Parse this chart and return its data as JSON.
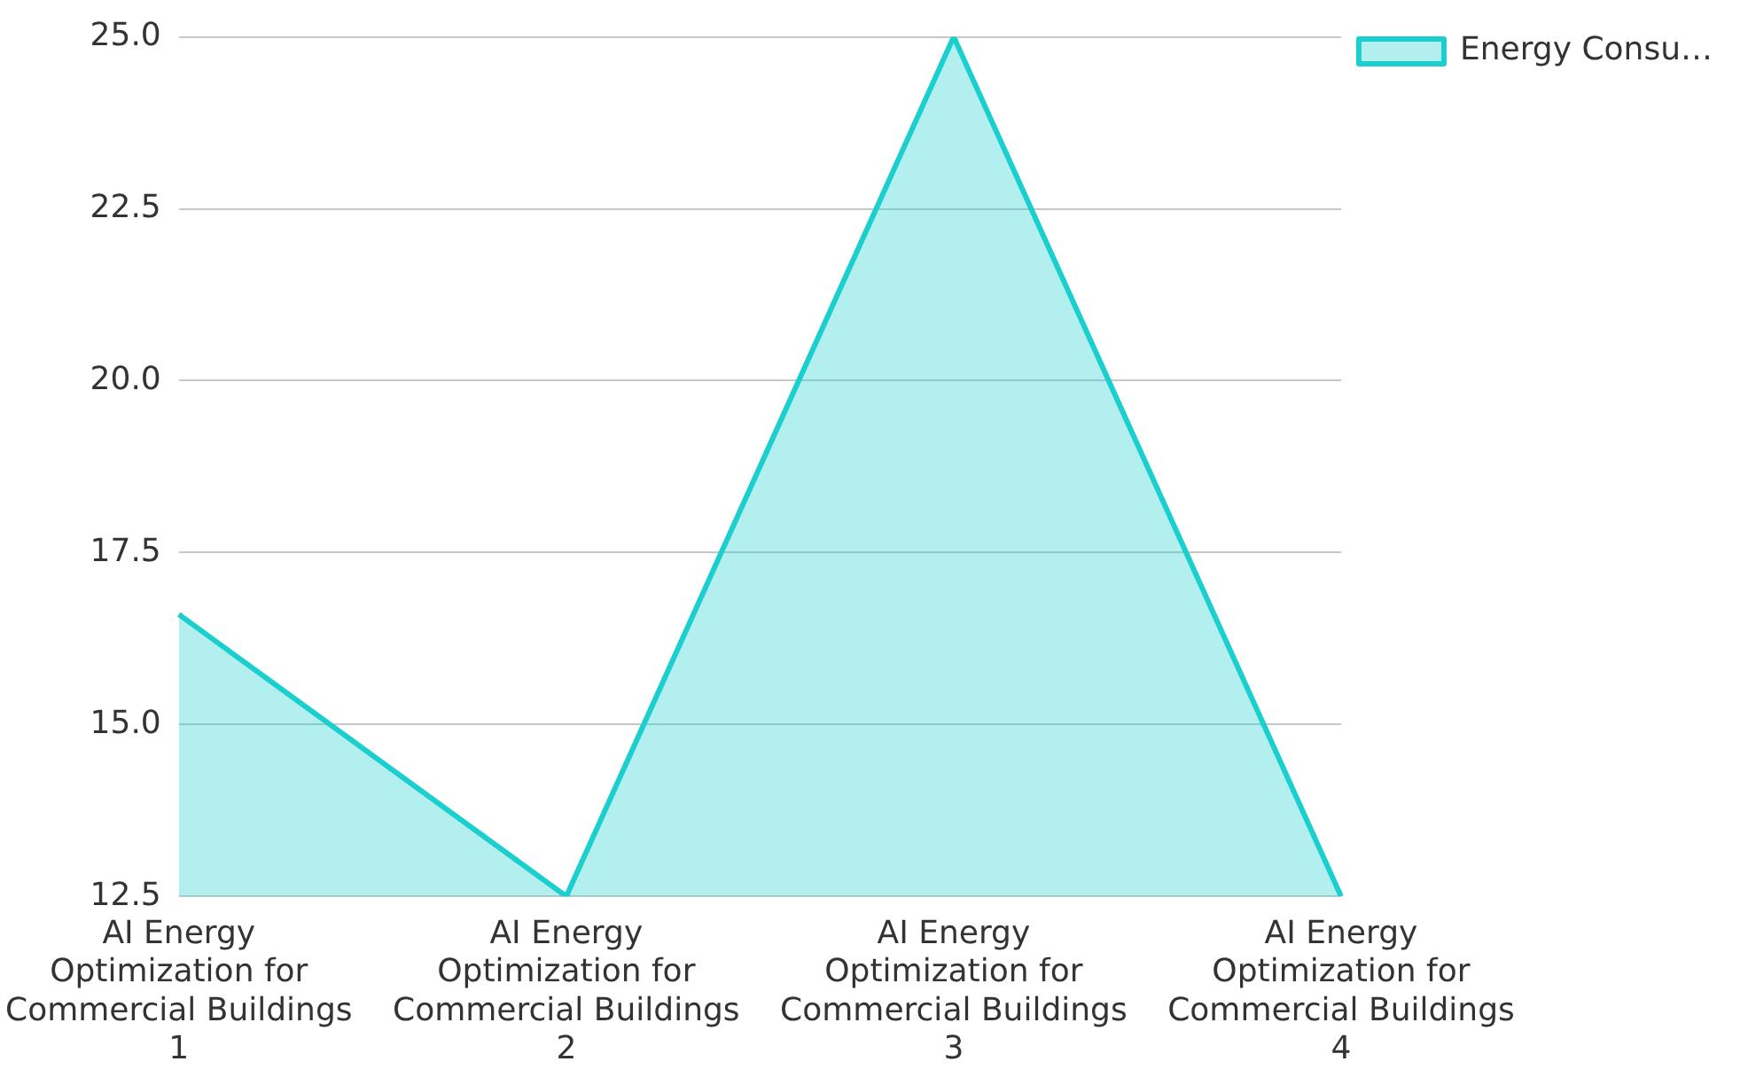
{
  "chart_data": {
    "type": "area",
    "categories": [
      "AI Energy Optimization for Commercial Buildings 1",
      "AI Energy Optimization for Commercial Buildings 2",
      "AI Energy Optimization for Commercial Buildings 3",
      "AI Energy Optimization for Commercial Buildings 4"
    ],
    "series": [
      {
        "name": "Energy Consu…",
        "color": "#1ccfcf",
        "values": [
          16.6,
          12.5,
          25,
          12.5
        ]
      }
    ],
    "ylim": [
      12.5,
      25
    ],
    "yticks": [
      {
        "value": 12.5,
        "label": "12.5"
      },
      {
        "value": 15,
        "label": "15.0"
      },
      {
        "value": 17.5,
        "label": "17.5"
      },
      {
        "value": 20,
        "label": "20.0"
      },
      {
        "value": 22.5,
        "label": "22.5"
      },
      {
        "value": 25,
        "label": "25.0"
      }
    ],
    "grid": "y",
    "legend": "top right",
    "marker": "none",
    "line_style": "solid"
  }
}
